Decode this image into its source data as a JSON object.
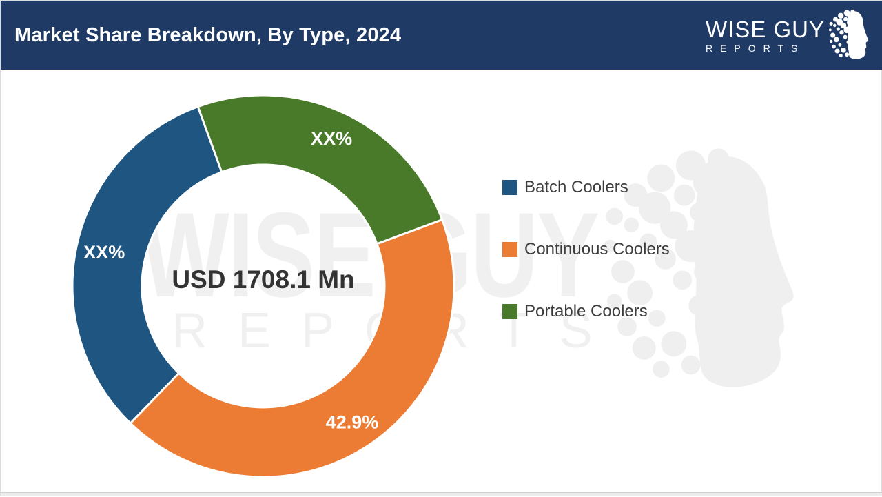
{
  "header": {
    "title": "Market Share Breakdown, By Type, 2024",
    "logo": {
      "line1": "WISE GUY",
      "line2": "REPORTS"
    }
  },
  "watermark": {
    "line1": "WISE GUY",
    "line2": "REPORTS"
  },
  "chart_data": {
    "type": "pie",
    "subtype": "donut",
    "title": "Market Share Breakdown, By Type, 2024",
    "center_label": "USD 1708.1 Mn",
    "total_value_usd_mn": 1708.1,
    "legend_position": "right",
    "start_angle_deg": 110,
    "direction": "counterclockwise",
    "series": [
      {
        "name": "Batch Coolers",
        "slice_label": "XX%",
        "value_pct": 32.2,
        "color": "#1f5581"
      },
      {
        "name": "Continuous Coolers",
        "slice_label": "42.9%",
        "value_pct": 42.9,
        "color": "#ec7c33"
      },
      {
        "name": "Portable Coolers",
        "slice_label": "XX%",
        "value_pct": 24.9,
        "color": "#497a29"
      }
    ]
  }
}
